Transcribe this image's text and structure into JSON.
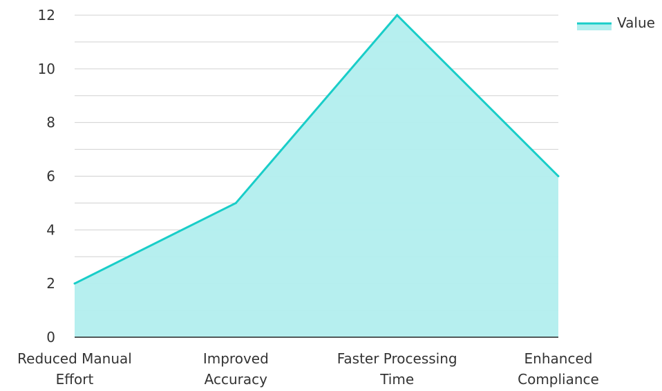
{
  "chart_data": {
    "type": "area",
    "categories": [
      [
        "Reduced Manual",
        "Effort"
      ],
      [
        "Improved",
        "Accuracy"
      ],
      [
        "Faster Processing",
        "Time"
      ],
      [
        "Enhanced",
        "Compliance"
      ]
    ],
    "series": [
      {
        "name": "Value",
        "values": [
          2,
          5,
          12,
          6
        ]
      }
    ],
    "ylim": [
      0,
      12
    ],
    "yticks": [
      0,
      2,
      4,
      6,
      8,
      10,
      12
    ],
    "minor_gridlines": true,
    "grid": true,
    "legend": {
      "position": "top-right",
      "entries": [
        "Value"
      ]
    },
    "colors": {
      "line": "#19cdc8",
      "fill": "#b2eeee",
      "grid": "#d0d0d0",
      "axis": "#222222",
      "text": "#333333"
    }
  }
}
